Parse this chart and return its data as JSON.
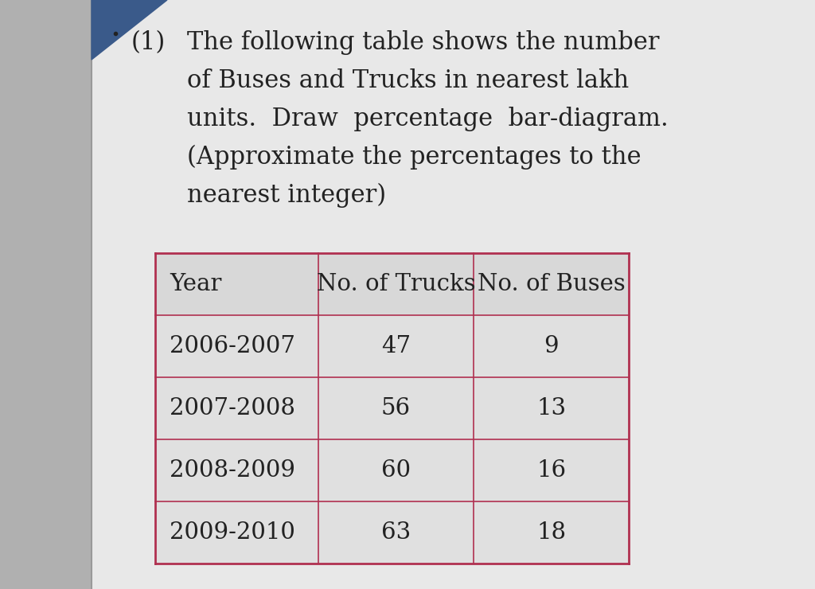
{
  "title_number": "(1)",
  "para_lines": [
    "The following table shows the number",
    "of Buses and Trucks in nearest lakh",
    "units.  Draw  percentage  bar-diagram.",
    "(Approximate the percentages to the",
    "nearest integer)"
  ],
  "col_headers": [
    "Year",
    "No. of Trucks",
    "No. of Buses"
  ],
  "rows": [
    [
      "2006-2007",
      "47",
      "9"
    ],
    [
      "2007-2008",
      "56",
      "13"
    ],
    [
      "2008-2009",
      "60",
      "16"
    ],
    [
      "2009-2010",
      "63",
      "18"
    ]
  ],
  "bg_color": "#c8c8c8",
  "page_bg": "#d2d2d2",
  "paper_color": "#e8e8e8",
  "table_border_color": "#b03050",
  "text_color": "#222222",
  "cell_bg": "#e0e0e0",
  "header_bg": "#d8d8d8",
  "font_size_para": 22,
  "font_size_table": 21,
  "left_strip_color": "#b0b0b0"
}
